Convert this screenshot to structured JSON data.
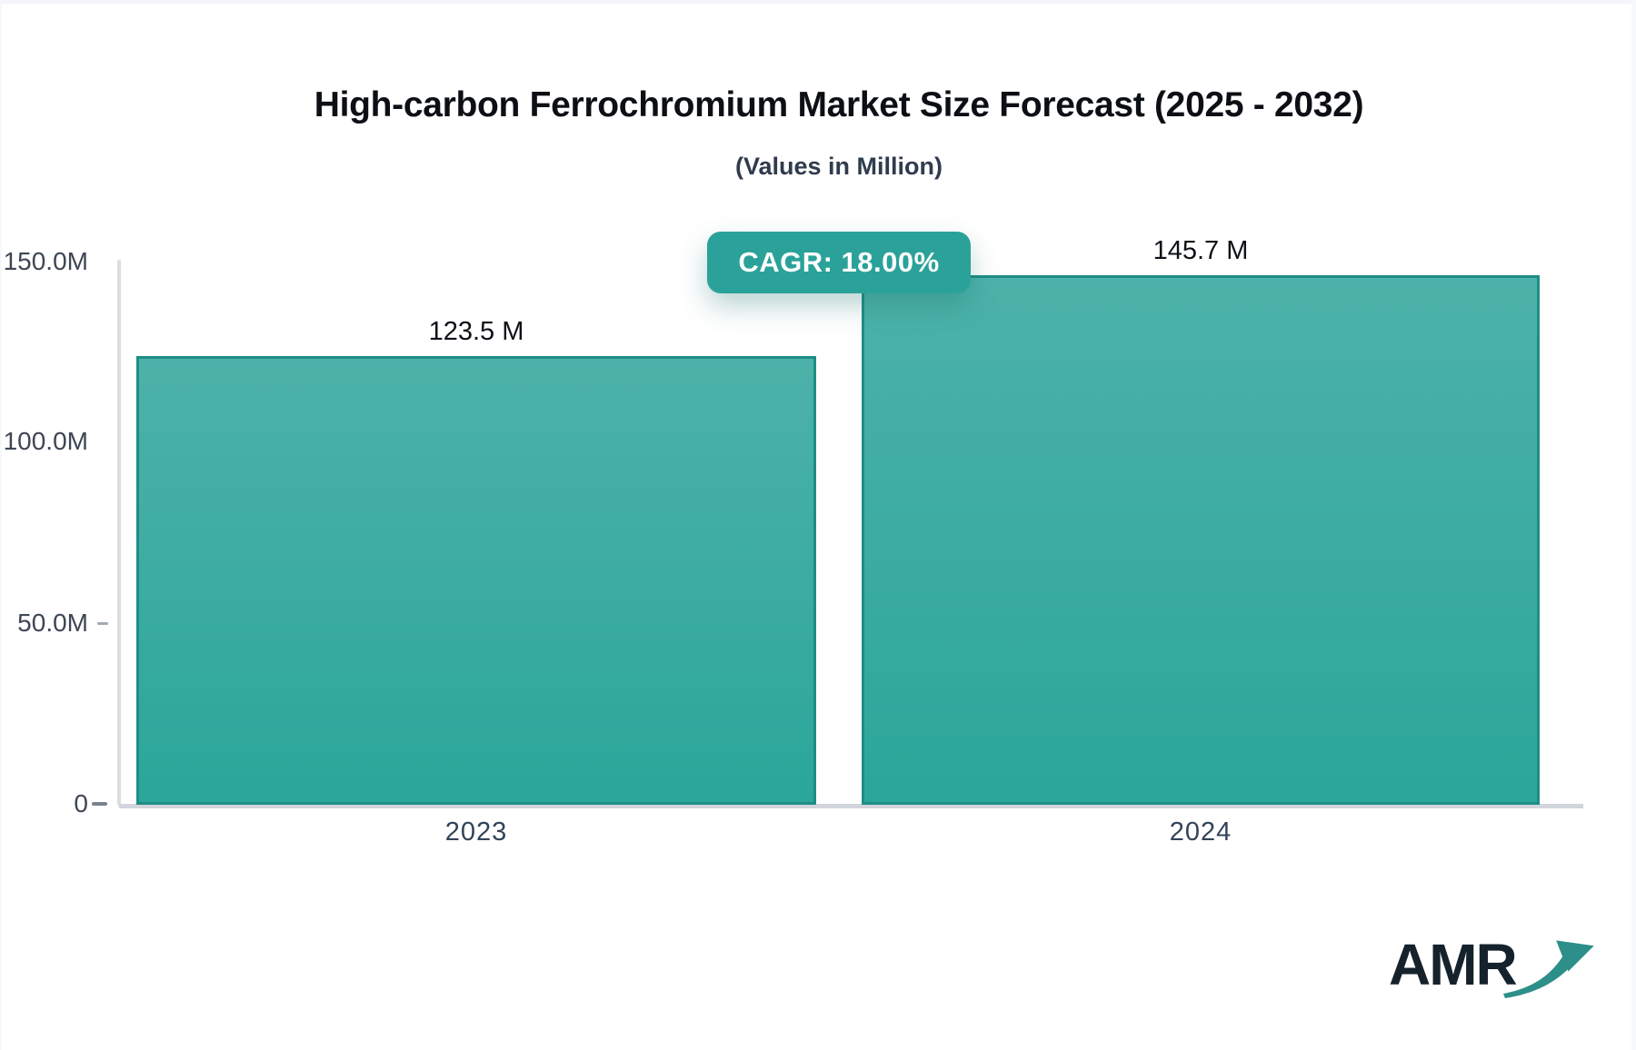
{
  "header": {
    "title": "High-carbon Ferrochromium Market Size Forecast (2025 - 2032)",
    "subtitle": "(Values in Million)"
  },
  "cagr_badge": {
    "label": "CAGR: 18.00%",
    "background": "#2aa299",
    "text_color": "#ffffff"
  },
  "chart_data": {
    "type": "bar",
    "title": "High-carbon Ferrochromium Market Size Forecast (2025 - 2032)",
    "subtitle": "(Values in Million)",
    "categories": [
      "2023",
      "2024"
    ],
    "values": [
      123.5,
      145.7
    ],
    "data_labels": [
      "123.5 M",
      "145.7 M"
    ],
    "unit": "Million",
    "xlabel": "",
    "ylabel": "",
    "ylim": [
      0,
      150
    ],
    "y_tick_labels": [
      "150.0M",
      "100.0M",
      "50.0M",
      "0"
    ],
    "y_tick_values": [
      150,
      100,
      50,
      0
    ],
    "grid": false,
    "legend": false,
    "annotations": [
      "CAGR: 18.00%"
    ],
    "bar_gradient_top": "#4db2a9",
    "bar_gradient_bottom": "#2ba69a",
    "bar_border_color": "#1e8d85"
  },
  "logo": {
    "text": "AMR",
    "icon": "growth-arrow-icon",
    "text_color": "#15212b",
    "arrow_color": "#2d8f89"
  }
}
